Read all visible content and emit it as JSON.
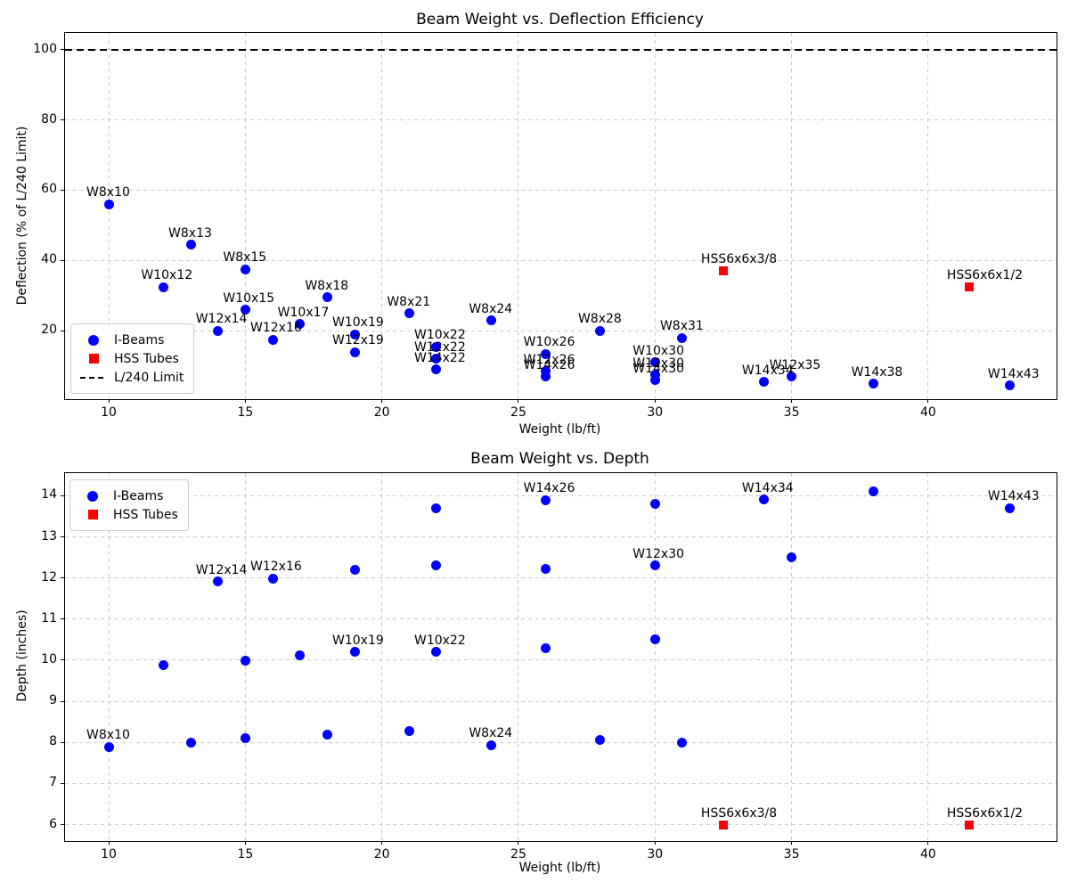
{
  "chart_data": {
    "type": "scatter",
    "figure_title": "",
    "series_styles": {
      "ibeam": {
        "label": "I-Beams",
        "color": "#0000ff",
        "marker": "circle"
      },
      "hss": {
        "label": "HSS Tubes",
        "color": "#ff0000",
        "marker": "square"
      }
    },
    "charts": [
      {
        "id": "deflection",
        "title": "Beam Weight vs. Deflection Efficiency",
        "xlabel": "Weight (lb/ft)",
        "ylabel": "Deflection (% of L/240 Limit)",
        "xlim": [
          8.4,
          44.7
        ],
        "ylim": [
          0.6,
          104.7
        ],
        "x_ticks": [
          10,
          15,
          20,
          25,
          30,
          35,
          40
        ],
        "y_ticks": [
          20,
          40,
          60,
          80,
          100
        ],
        "grid": true,
        "y_field": "deflection_pct",
        "label_flag": "label_in_deflection",
        "limit_line": {
          "y": 100,
          "label": "L/240 Limit",
          "color": "#000000",
          "style": "dashed"
        },
        "legend": {
          "location": "lower-left",
          "entries": [
            {
              "label": "I-Beams",
              "marker": "circle",
              "color": "#0000ff"
            },
            {
              "label": "HSS Tubes",
              "marker": "square",
              "color": "#ff0000"
            },
            {
              "label": "L/240 Limit",
              "marker": "dashed-line",
              "color": "#000000"
            }
          ]
        }
      },
      {
        "id": "depth",
        "title": "Beam Weight vs. Depth",
        "xlabel": "Weight (lb/ft)",
        "ylabel": "Depth (inches)",
        "xlim": [
          8.4,
          44.7
        ],
        "ylim": [
          5.6,
          14.55
        ],
        "x_ticks": [
          10,
          15,
          20,
          25,
          30,
          35,
          40
        ],
        "y_ticks": [
          6,
          7,
          8,
          9,
          10,
          11,
          12,
          13,
          14
        ],
        "grid": true,
        "y_field": "depth_in",
        "label_flag": "label_in_depth",
        "limit_line": null,
        "legend": {
          "location": "upper-left",
          "entries": [
            {
              "label": "I-Beams",
              "marker": "circle",
              "color": "#0000ff"
            },
            {
              "label": "HSS Tubes",
              "marker": "square",
              "color": "#ff0000"
            }
          ]
        }
      }
    ],
    "beams": [
      {
        "name": "W8x10",
        "family": "ibeam",
        "weight": 10,
        "deflection_pct": 56,
        "depth_in": 7.89,
        "label_in_deflection": true,
        "label_in_depth": true
      },
      {
        "name": "W10x12",
        "family": "ibeam",
        "weight": 12,
        "deflection_pct": 32.5,
        "depth_in": 9.87,
        "label_in_deflection": true,
        "label_in_depth": false
      },
      {
        "name": "W8x13",
        "family": "ibeam",
        "weight": 13,
        "deflection_pct": 44.5,
        "depth_in": 7.99,
        "label_in_deflection": true,
        "label_in_depth": false
      },
      {
        "name": "W12x14",
        "family": "ibeam",
        "weight": 14,
        "deflection_pct": 20,
        "depth_in": 11.91,
        "label_in_deflection": true,
        "label_in_depth": true
      },
      {
        "name": "W8x15",
        "family": "ibeam",
        "weight": 15,
        "deflection_pct": 37.5,
        "depth_in": 8.11,
        "label_in_deflection": true,
        "label_in_depth": false
      },
      {
        "name": "W10x15",
        "family": "ibeam",
        "weight": 15,
        "deflection_pct": 26,
        "depth_in": 9.99,
        "label_in_deflection": true,
        "label_in_depth": false
      },
      {
        "name": "W12x16",
        "family": "ibeam",
        "weight": 16,
        "deflection_pct": 17.5,
        "depth_in": 11.99,
        "label_in_deflection": true,
        "label_in_depth": true
      },
      {
        "name": "W10x17",
        "family": "ibeam",
        "weight": 17,
        "deflection_pct": 22,
        "depth_in": 10.11,
        "label_in_deflection": true,
        "label_in_depth": false
      },
      {
        "name": "W8x18",
        "family": "ibeam",
        "weight": 18,
        "deflection_pct": 29.5,
        "depth_in": 8.2,
        "label_in_deflection": true,
        "label_in_depth": false
      },
      {
        "name": "W10x19",
        "family": "ibeam",
        "weight": 19,
        "deflection_pct": 19,
        "depth_in": 10.2,
        "label_in_deflection": true,
        "label_in_depth": true
      },
      {
        "name": "W12x19",
        "family": "ibeam",
        "weight": 19,
        "deflection_pct": 14,
        "depth_in": 12.2,
        "label_in_deflection": true,
        "label_in_depth": false
      },
      {
        "name": "W8x21",
        "family": "ibeam",
        "weight": 21,
        "deflection_pct": 25,
        "depth_in": 8.28,
        "label_in_deflection": true,
        "label_in_depth": false
      },
      {
        "name": "W10x22",
        "family": "ibeam",
        "weight": 22,
        "deflection_pct": 15.5,
        "depth_in": 10.2,
        "label_in_deflection": true,
        "label_in_depth": true
      },
      {
        "name": "W12x22",
        "family": "ibeam",
        "weight": 22,
        "deflection_pct": 12,
        "depth_in": 12.3,
        "label_in_deflection": true,
        "label_in_depth": false
      },
      {
        "name": "W14x22",
        "family": "ibeam",
        "weight": 22,
        "deflection_pct": 9,
        "depth_in": 13.7,
        "label_in_deflection": true,
        "label_in_depth": false
      },
      {
        "name": "W8x24",
        "family": "ibeam",
        "weight": 24,
        "deflection_pct": 23,
        "depth_in": 7.93,
        "label_in_deflection": true,
        "label_in_depth": true
      },
      {
        "name": "W10x26",
        "family": "ibeam",
        "weight": 26,
        "deflection_pct": 13.5,
        "depth_in": 10.3,
        "label_in_deflection": true,
        "label_in_depth": false
      },
      {
        "name": "W12x26",
        "family": "ibeam",
        "weight": 26,
        "deflection_pct": 8.5,
        "depth_in": 12.22,
        "label_in_deflection": true,
        "label_in_depth": false
      },
      {
        "name": "W14x26",
        "family": "ibeam",
        "weight": 26,
        "deflection_pct": 7,
        "depth_in": 13.89,
        "label_in_deflection": true,
        "label_in_depth": true
      },
      {
        "name": "W8x28",
        "family": "ibeam",
        "weight": 28,
        "deflection_pct": 20,
        "depth_in": 8.06,
        "label_in_deflection": true,
        "label_in_depth": false
      },
      {
        "name": "W10x30",
        "family": "ibeam",
        "weight": 30,
        "deflection_pct": 11,
        "depth_in": 10.5,
        "label_in_deflection": true,
        "label_in_depth": false
      },
      {
        "name": "W12x30",
        "family": "ibeam",
        "weight": 30,
        "deflection_pct": 7.5,
        "depth_in": 12.3,
        "label_in_deflection": true,
        "label_in_depth": true
      },
      {
        "name": "W14x30",
        "family": "ibeam",
        "weight": 30,
        "deflection_pct": 6,
        "depth_in": 13.8,
        "label_in_deflection": true,
        "label_in_depth": false
      },
      {
        "name": "W8x31",
        "family": "ibeam",
        "weight": 31,
        "deflection_pct": 18,
        "depth_in": 8.0,
        "label_in_deflection": true,
        "label_in_depth": false
      },
      {
        "name": "W14x34",
        "family": "ibeam",
        "weight": 34,
        "deflection_pct": 5.5,
        "depth_in": 13.9,
        "label_in_deflection": true,
        "label_in_depth": true
      },
      {
        "name": "W12x35",
        "family": "ibeam",
        "weight": 35,
        "deflection_pct": 7,
        "depth_in": 12.5,
        "label_in_deflection": true,
        "label_in_depth": false
      },
      {
        "name": "W14x38",
        "family": "ibeam",
        "weight": 38,
        "deflection_pct": 5,
        "depth_in": 14.1,
        "label_in_deflection": true,
        "label_in_depth": false
      },
      {
        "name": "W14x43",
        "family": "ibeam",
        "weight": 43,
        "deflection_pct": 4.5,
        "depth_in": 13.7,
        "label_in_deflection": true,
        "label_in_depth": true
      },
      {
        "name": "HSS6x6x3/8",
        "family": "hss",
        "weight": 32.5,
        "deflection_pct": 37,
        "depth_in": 6.0,
        "label_in_deflection": true,
        "label_in_depth": true
      },
      {
        "name": "HSS6x6x1/2",
        "family": "hss",
        "weight": 41.5,
        "deflection_pct": 32.5,
        "depth_in": 6.0,
        "label_in_deflection": true,
        "label_in_depth": true
      }
    ]
  }
}
